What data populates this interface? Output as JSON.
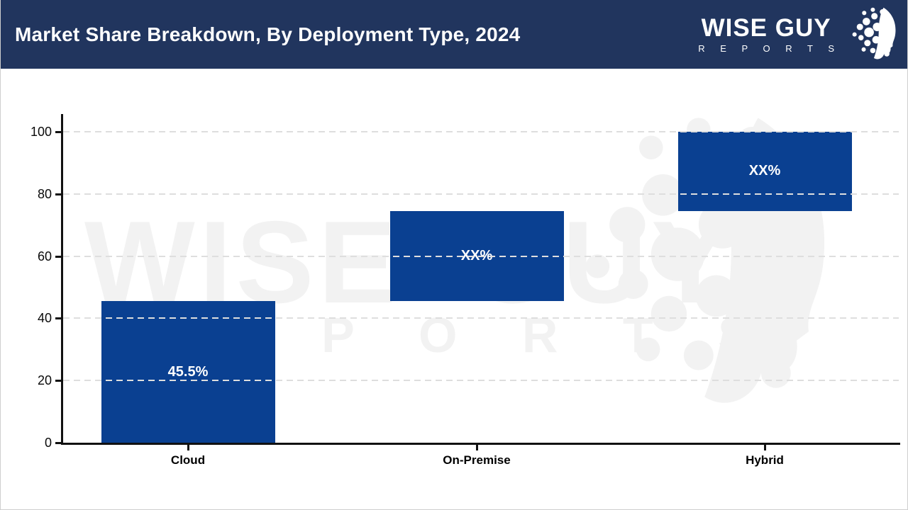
{
  "page": {
    "bg": "#ffffff",
    "border_color": "#cfcfcf"
  },
  "header": {
    "bg_color": "#21355e",
    "title": "Market Share Breakdown, By Deployment Type, 2024",
    "title_color": "#ffffff",
    "logo": {
      "line1": "WISE GUY",
      "line2": "R E P O R T S",
      "color": "#ffffff",
      "face_icon": "dotted-head-profile"
    }
  },
  "watermark": {
    "line1": "WISE GUY",
    "line2": "R E P O R T S",
    "color": "#f2f2f2",
    "face_icon": "dotted-head-profile"
  },
  "chart_data": {
    "type": "bar",
    "variant": "floating-segment-waterfall",
    "title": "Market Share Breakdown, By Deployment Type, 2024",
    "categories": [
      "Cloud",
      "On-Premise",
      "Hybrid"
    ],
    "segments": [
      {
        "category": "Cloud",
        "start": 0,
        "end": 45.5,
        "label": "45.5%"
      },
      {
        "category": "On-Premise",
        "start": 45.5,
        "end": 74.5,
        "label": "XX%"
      },
      {
        "category": "Hybrid",
        "start": 74.5,
        "end": 100,
        "label": "XX%"
      }
    ],
    "xlabel": "",
    "ylabel": "",
    "ylim": [
      0,
      105
    ],
    "yticks": [
      0,
      20,
      40,
      60,
      80,
      100
    ],
    "grid": "horizontal-dashed",
    "legend": "none",
    "bar_color": "#0a4091",
    "bar_label_color": "#ffffff",
    "grid_color": "#dedede",
    "axis_color": "#111111"
  }
}
